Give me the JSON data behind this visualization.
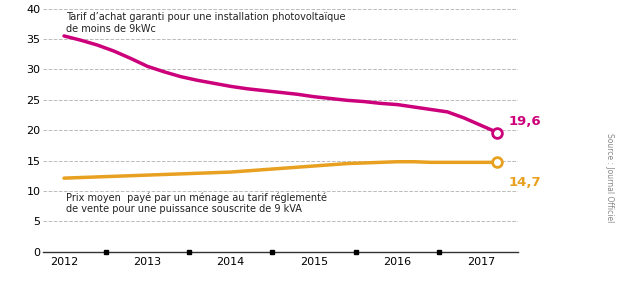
{
  "pink_x": [
    2012,
    2012.2,
    2012.4,
    2012.6,
    2012.8,
    2013,
    2013.2,
    2013.4,
    2013.6,
    2013.8,
    2014,
    2014.2,
    2014.4,
    2014.6,
    2014.8,
    2015,
    2015.2,
    2015.4,
    2015.6,
    2015.8,
    2016,
    2016.2,
    2016.4,
    2016.6,
    2016.8,
    2017,
    2017.2
  ],
  "pink_y": [
    35.5,
    34.8,
    34.0,
    33.0,
    31.8,
    30.5,
    29.6,
    28.8,
    28.2,
    27.7,
    27.2,
    26.8,
    26.5,
    26.2,
    25.9,
    25.5,
    25.2,
    24.9,
    24.7,
    24.4,
    24.2,
    23.8,
    23.4,
    23.0,
    22.0,
    20.8,
    19.6
  ],
  "orange_x": [
    2012,
    2012.2,
    2012.4,
    2012.6,
    2012.8,
    2013,
    2013.2,
    2013.4,
    2013.6,
    2013.8,
    2014,
    2014.2,
    2014.4,
    2014.6,
    2014.8,
    2015,
    2015.2,
    2015.4,
    2015.6,
    2015.8,
    2016,
    2016.2,
    2016.4,
    2016.6,
    2016.8,
    2017,
    2017.2
  ],
  "orange_y": [
    12.1,
    12.2,
    12.3,
    12.4,
    12.5,
    12.6,
    12.7,
    12.8,
    12.9,
    13.0,
    13.1,
    13.3,
    13.5,
    13.7,
    13.9,
    14.1,
    14.3,
    14.5,
    14.6,
    14.7,
    14.8,
    14.8,
    14.7,
    14.7,
    14.7,
    14.7,
    14.7
  ],
  "pink_color": "#CC007A",
  "orange_color": "#E8A020",
  "pink_label_value": "19,6",
  "orange_label_value": "14,7",
  "pink_annotation_line1": "Tarif d’achat garanti pour une installation photovoltaïque",
  "pink_annotation_line2": "de moins de 9kWc",
  "orange_annotation_line1": "Prix moyen  payé par un ménage au tarif réglementé",
  "orange_annotation_line2": "de vente pour une puissance souscrite de 9 kVA",
  "source_text": "Source : Journal Officiel",
  "xlim": [
    2011.75,
    2017.45
  ],
  "ylim": [
    0,
    40
  ],
  "yticks": [
    0,
    5,
    10,
    15,
    20,
    25,
    30,
    35,
    40
  ],
  "xticks": [
    2012,
    2013,
    2014,
    2015,
    2016,
    2017
  ],
  "mid_ticks": [
    2012.5,
    2013.5,
    2014.5,
    2015.5,
    2016.5
  ],
  "background_color": "#FFFFFF",
  "grid_color": "#BBBBBB"
}
